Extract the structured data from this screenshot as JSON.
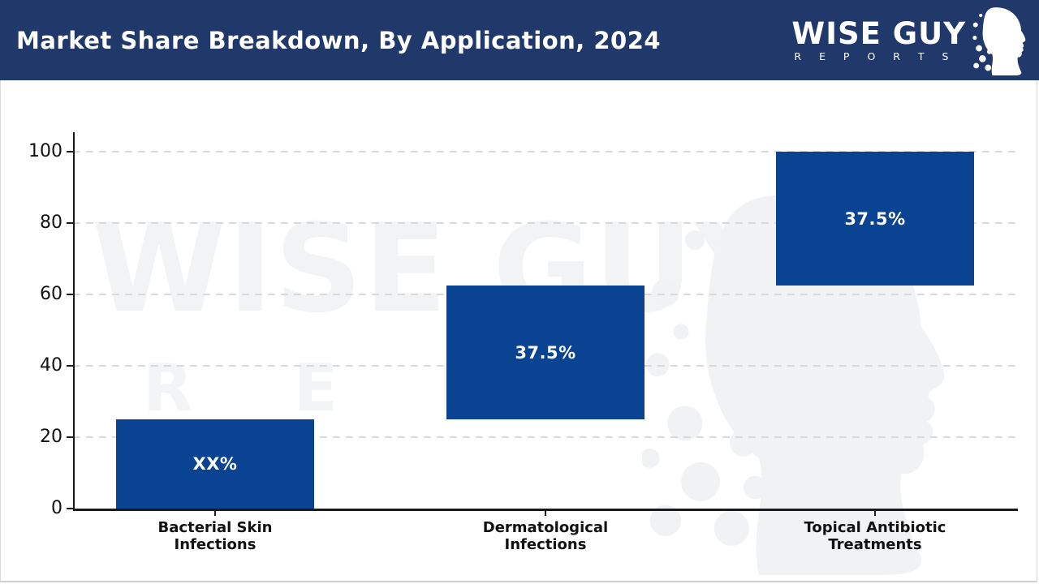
{
  "header": {
    "title": "Market Share Breakdown, By Application, 2024",
    "bg_color": "#21386b",
    "logo": {
      "line1": "WISE GUY",
      "line2": "R E P O R T S"
    }
  },
  "watermark": {
    "line1": "WISE GUY",
    "line2": "R E P O R T S"
  },
  "chart_data": {
    "type": "bar",
    "subtype": "floating-segment-waterfall",
    "title": "Market Share Breakdown, By Application, 2024",
    "categories": [
      [
        "Bacterial Skin",
        "Infections"
      ],
      [
        "Dermatological",
        "Infections"
      ],
      [
        "Topical Antibiotic",
        "Treatments"
      ]
    ],
    "segments": [
      {
        "category": "Bacterial Skin Infections",
        "start": 0,
        "end": 25,
        "label": "XX%"
      },
      {
        "category": "Dermatological Infections",
        "start": 25,
        "end": 62.5,
        "label": "37.5%"
      },
      {
        "category": "Topical Antibiotic Treatments",
        "start": 62.5,
        "end": 100,
        "label": "37.5%"
      }
    ],
    "ylim": [
      0,
      100
    ],
    "yticks": [
      0,
      20,
      40,
      60,
      80,
      100
    ],
    "xlabel": "",
    "ylabel": "",
    "grid": "horizontal-dashed",
    "legend_position": "none",
    "bar_color": "#0a4392",
    "bar_label_color": "#ffffff",
    "axis_color": "#1a1a1a",
    "gridline_color": "#d9d9d9"
  }
}
